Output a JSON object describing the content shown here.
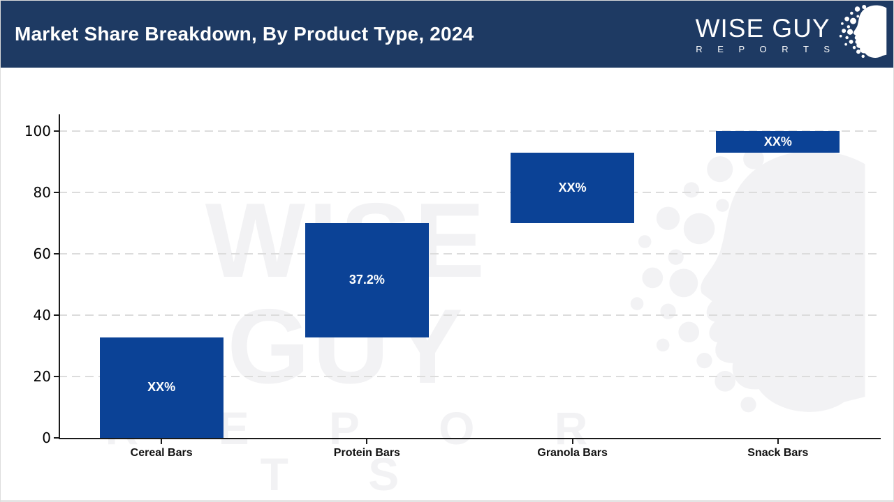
{
  "header": {
    "title": "Market Share Breakdown, By Product Type, 2024",
    "logo_line1": "WISE GUY",
    "logo_line2": "R E P O R T S"
  },
  "watermark": {
    "line1": "WISE GUY",
    "line2": "R E P O R T S"
  },
  "colors": {
    "header_bg": "#1e3a63",
    "bar_fill": "#0b4296",
    "bar_label_text": "#ffffff",
    "gridline": "#dcdcdc",
    "axis": "#1a1a1a",
    "watermark": "#f2f2f4"
  },
  "chart_data": {
    "type": "bar",
    "subtype": "floating-waterfall",
    "title": "Market Share Breakdown, By Product Type, 2024",
    "categories": [
      "Cereal Bars",
      "Protein Bars",
      "Granola Bars",
      "Snack Bars"
    ],
    "segments": [
      {
        "category": "Cereal Bars",
        "start": 0,
        "end": 32.8,
        "label": "XX%"
      },
      {
        "category": "Protein Bars",
        "start": 32.8,
        "end": 70,
        "label": "37.2%"
      },
      {
        "category": "Granola Bars",
        "start": 70,
        "end": 93,
        "label": "XX%"
      },
      {
        "category": "Snack Bars",
        "start": 93,
        "end": 100,
        "label": "XX%"
      }
    ],
    "yticks": [
      0,
      20,
      40,
      60,
      80,
      100
    ],
    "ylim": [
      0,
      105.5
    ],
    "xlabel": "",
    "ylabel": "",
    "grid": "horizontal-dashed",
    "legend": "none"
  }
}
